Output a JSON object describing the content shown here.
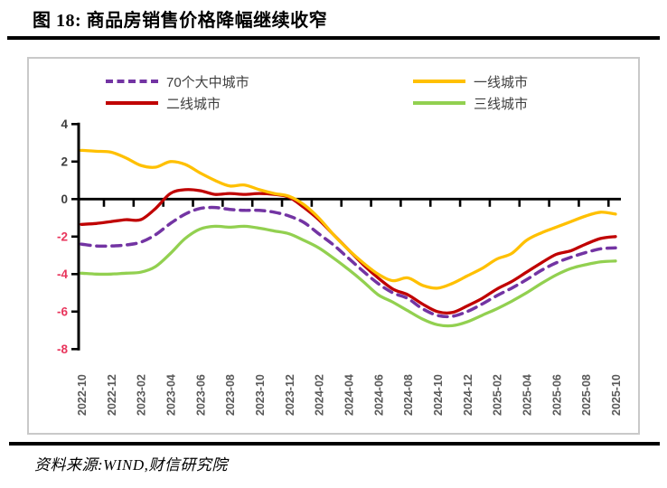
{
  "title": "图 18: 商品房销售价格降幅继续收窄",
  "footer": {
    "source_text": "资料来源:WIND,财信研究院"
  },
  "colors": {
    "tick_label_positive": "#3d3d3d",
    "tick_label_negative": "#e8355c",
    "x_label": "#595959",
    "axis": "#000000",
    "card_border": "#c9c9c9"
  },
  "chart_data": {
    "type": "line",
    "grid": false,
    "legend_position": "top",
    "ylim": [
      -8,
      4
    ],
    "yticks": [
      4,
      2,
      0,
      -2,
      -4,
      -6,
      -8
    ],
    "x": [
      "2022-10",
      "2022-11",
      "2022-12",
      "2023-01",
      "2023-02",
      "2023-03",
      "2023-04",
      "2023-05",
      "2023-06",
      "2023-07",
      "2023-08",
      "2023-09",
      "2023-10",
      "2023-11",
      "2023-12",
      "2024-01",
      "2024-02",
      "2024-03",
      "2024-04",
      "2024-05",
      "2024-06",
      "2024-07",
      "2024-08",
      "2024-09",
      "2024-10",
      "2024-11",
      "2024-12",
      "2025-01",
      "2025-02",
      "2025-03",
      "2025-04",
      "2025-05",
      "2025-06",
      "2025-07",
      "2025-08",
      "2025-09",
      "2025-10"
    ],
    "x_tick_labels": [
      "2022-10",
      "2022-12",
      "2023-02",
      "2023-04",
      "2023-06",
      "2023-08",
      "2023-10",
      "2023-12",
      "2024-02",
      "2024-04",
      "2024-06",
      "2024-08",
      "2024-10",
      "2024-12",
      "2025-02",
      "2025-04",
      "2025-06",
      "2025-08",
      "2025-10"
    ],
    "series": [
      {
        "name": "70个大中城市",
        "color": "#7334a3",
        "dashed": true,
        "values": [
          -2.4,
          -2.5,
          -2.5,
          -2.45,
          -2.3,
          -1.9,
          -1.3,
          -0.8,
          -0.5,
          -0.45,
          -0.55,
          -0.6,
          -0.6,
          -0.7,
          -0.9,
          -1.25,
          -1.85,
          -2.45,
          -3.15,
          -3.85,
          -4.5,
          -5.0,
          -5.3,
          -5.85,
          -6.2,
          -6.25,
          -6.0,
          -5.6,
          -5.15,
          -4.75,
          -4.3,
          -3.8,
          -3.4,
          -3.1,
          -2.85,
          -2.65,
          -2.6
        ]
      },
      {
        "name": "一线城市",
        "color": "#ffc000",
        "dashed": false,
        "values": [
          2.6,
          2.55,
          2.5,
          2.2,
          1.8,
          1.7,
          2.0,
          1.85,
          1.4,
          1.0,
          0.7,
          0.75,
          0.5,
          0.3,
          0.15,
          -0.3,
          -1.0,
          -1.9,
          -2.7,
          -3.4,
          -4.0,
          -4.35,
          -4.2,
          -4.6,
          -4.75,
          -4.5,
          -4.1,
          -3.7,
          -3.2,
          -2.9,
          -2.2,
          -1.8,
          -1.5,
          -1.2,
          -0.9,
          -0.7,
          -0.8
        ]
      },
      {
        "name": "二线城市",
        "color": "#c00000",
        "dashed": false,
        "values": [
          -1.35,
          -1.3,
          -1.2,
          -1.1,
          -1.1,
          -0.5,
          0.3,
          0.5,
          0.45,
          0.25,
          0.3,
          0.25,
          0.3,
          0.25,
          0.1,
          -0.45,
          -1.1,
          -1.9,
          -2.7,
          -3.5,
          -4.2,
          -4.8,
          -5.1,
          -5.6,
          -6.0,
          -6.05,
          -5.7,
          -5.3,
          -4.8,
          -4.4,
          -3.9,
          -3.4,
          -2.95,
          -2.75,
          -2.4,
          -2.1,
          -2.0
        ]
      },
      {
        "name": "三线城市",
        "color": "#92d050",
        "dashed": false,
        "values": [
          -3.95,
          -4.0,
          -4.0,
          -3.95,
          -3.9,
          -3.6,
          -2.9,
          -2.1,
          -1.6,
          -1.45,
          -1.5,
          -1.45,
          -1.55,
          -1.7,
          -1.85,
          -2.2,
          -2.6,
          -3.15,
          -3.75,
          -4.4,
          -5.1,
          -5.5,
          -5.95,
          -6.4,
          -6.7,
          -6.75,
          -6.55,
          -6.2,
          -5.85,
          -5.45,
          -5.0,
          -4.5,
          -4.05,
          -3.7,
          -3.5,
          -3.35,
          -3.3
        ]
      }
    ]
  }
}
